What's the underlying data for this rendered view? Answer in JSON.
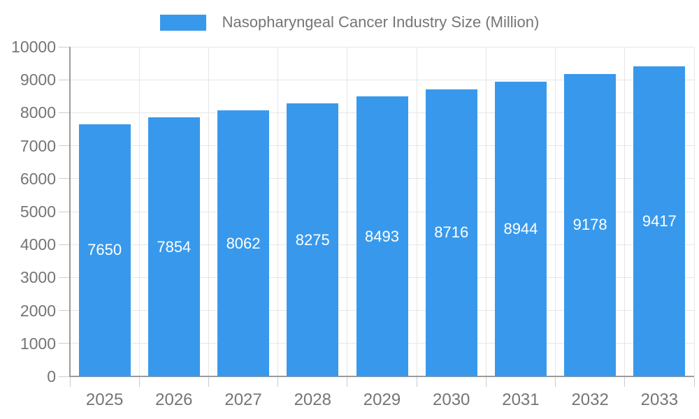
{
  "chart_data": {
    "type": "bar",
    "title": "Nasopharyngeal Cancer Industry Size (Million)",
    "categories": [
      "2025",
      "2026",
      "2027",
      "2028",
      "2029",
      "2030",
      "2031",
      "2032",
      "2033"
    ],
    "values": [
      7650,
      7854,
      8062,
      8275,
      8493,
      8716,
      8944,
      9178,
      9417
    ],
    "xlabel": "",
    "ylabel": "",
    "ylim": [
      0,
      10000
    ],
    "ytick_step": 1000,
    "ytick_labels": [
      "0",
      "1000",
      "2000",
      "3000",
      "4000",
      "5000",
      "6000",
      "7000",
      "8000",
      "9000",
      "10000"
    ],
    "grid": true,
    "legend_position": "top",
    "value_labels_inside_bars": true,
    "colors": {
      "bar": "#3899EC",
      "value_label": "#FFFFFF",
      "axis_text": "#757575",
      "axis_line": "#9B9B9B",
      "gridline": "#E6E6E6",
      "tick": "#CCCCCC",
      "background": "#FFFFFF"
    }
  }
}
